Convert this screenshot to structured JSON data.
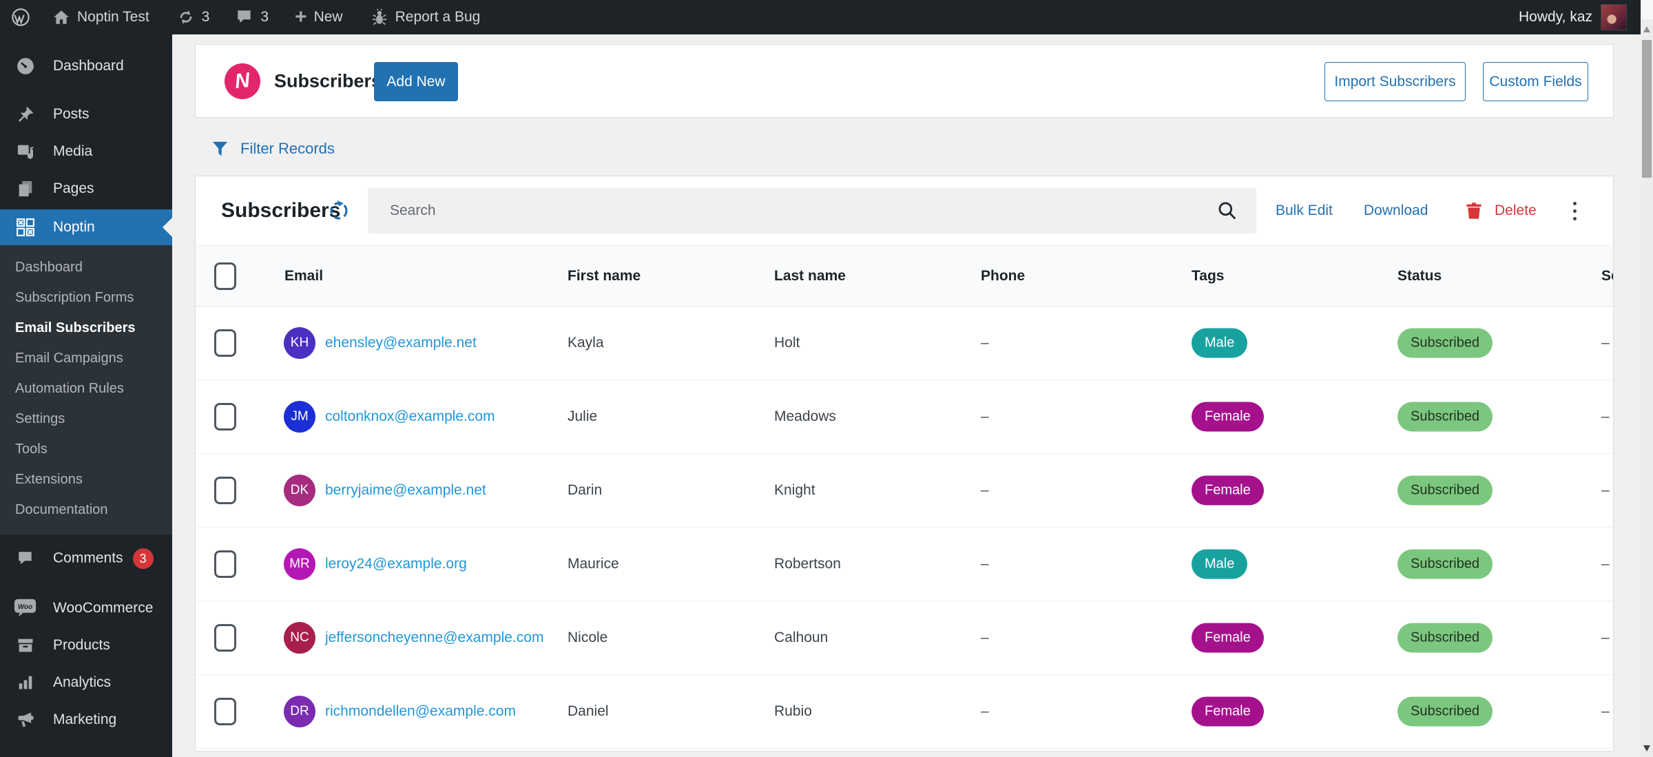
{
  "admin_bar": {
    "site_name": "Noptin Test",
    "updates_count": "3",
    "comments_count": "3",
    "new_label": "New",
    "report_bug_label": "Report a Bug",
    "howdy": "Howdy, kaz"
  },
  "sidebar": {
    "items": [
      {
        "label": "Dashboard"
      },
      {
        "label": "Posts"
      },
      {
        "label": "Media"
      },
      {
        "label": "Pages"
      },
      {
        "label": "Noptin"
      },
      {
        "label": "Comments",
        "badge": "3"
      },
      {
        "label": "WooCommerce"
      },
      {
        "label": "Products"
      },
      {
        "label": "Analytics"
      },
      {
        "label": "Marketing"
      }
    ],
    "noptin_submenu": [
      "Dashboard",
      "Subscription Forms",
      "Email Subscribers",
      "Email Campaigns",
      "Automation Rules",
      "Settings",
      "Tools",
      "Extensions",
      "Documentation"
    ],
    "active_item": "Noptin",
    "active_submenu": "Email Subscribers"
  },
  "header": {
    "title": "Subscribers",
    "add_new_label": "Add New",
    "import_label": "Import Subscribers",
    "custom_fields_label": "Custom Fields"
  },
  "filter": {
    "label": "Filter Records"
  },
  "toolbar": {
    "title": "Subscribers",
    "search_placeholder": "Search",
    "bulk_edit_label": "Bulk Edit",
    "download_label": "Download",
    "delete_label": "Delete"
  },
  "colors": {
    "accent": "#2271b1",
    "email_link": "#2196d9",
    "delete_red": "#d63638",
    "logo_pink": "#e3266b",
    "status_green": "#7cc77f",
    "tag_male": "#17a2a0",
    "tag_female": "#a5118c"
  },
  "table": {
    "columns": [
      "Email",
      "First name",
      "Last name",
      "Phone",
      "Tags",
      "Status",
      "Sc"
    ],
    "rows": [
      {
        "initials": "KH",
        "avatar_color": "#4b2fc1",
        "email": "ehensley@example.net",
        "first": "Kayla",
        "last": "Holt",
        "phone": "–",
        "tag": "Male",
        "tag_color": "#17a2a0",
        "status": "Subscribed",
        "extra": "–"
      },
      {
        "initials": "JM",
        "avatar_color": "#1b2fd4",
        "email": "coltonknox@example.com",
        "first": "Julie",
        "last": "Meadows",
        "phone": "–",
        "tag": "Female",
        "tag_color": "#a5118c",
        "status": "Subscribed",
        "extra": "–"
      },
      {
        "initials": "DK",
        "avatar_color": "#a62c80",
        "email": "berryjaime@example.net",
        "first": "Darin",
        "last": "Knight",
        "phone": "–",
        "tag": "Female",
        "tag_color": "#a5118c",
        "status": "Subscribed",
        "extra": "–"
      },
      {
        "initials": "MR",
        "avatar_color": "#b418b4",
        "email": "leroy24@example.org",
        "first": "Maurice",
        "last": "Robertson",
        "phone": "–",
        "tag": "Male",
        "tag_color": "#17a2a0",
        "status": "Subscribed",
        "extra": "–"
      },
      {
        "initials": "NC",
        "avatar_color": "#a81f4d",
        "email": "jeffersoncheyenne@example.com",
        "first": "Nicole",
        "last": "Calhoun",
        "phone": "–",
        "tag": "Female",
        "tag_color": "#a5118c",
        "status": "Subscribed",
        "extra": "–"
      },
      {
        "initials": "DR",
        "avatar_color": "#7a2bb0",
        "email": "richmondellen@example.com",
        "first": "Daniel",
        "last": "Rubio",
        "phone": "–",
        "tag": "Female",
        "tag_color": "#a5118c",
        "status": "Subscribed",
        "extra": "–"
      }
    ]
  }
}
